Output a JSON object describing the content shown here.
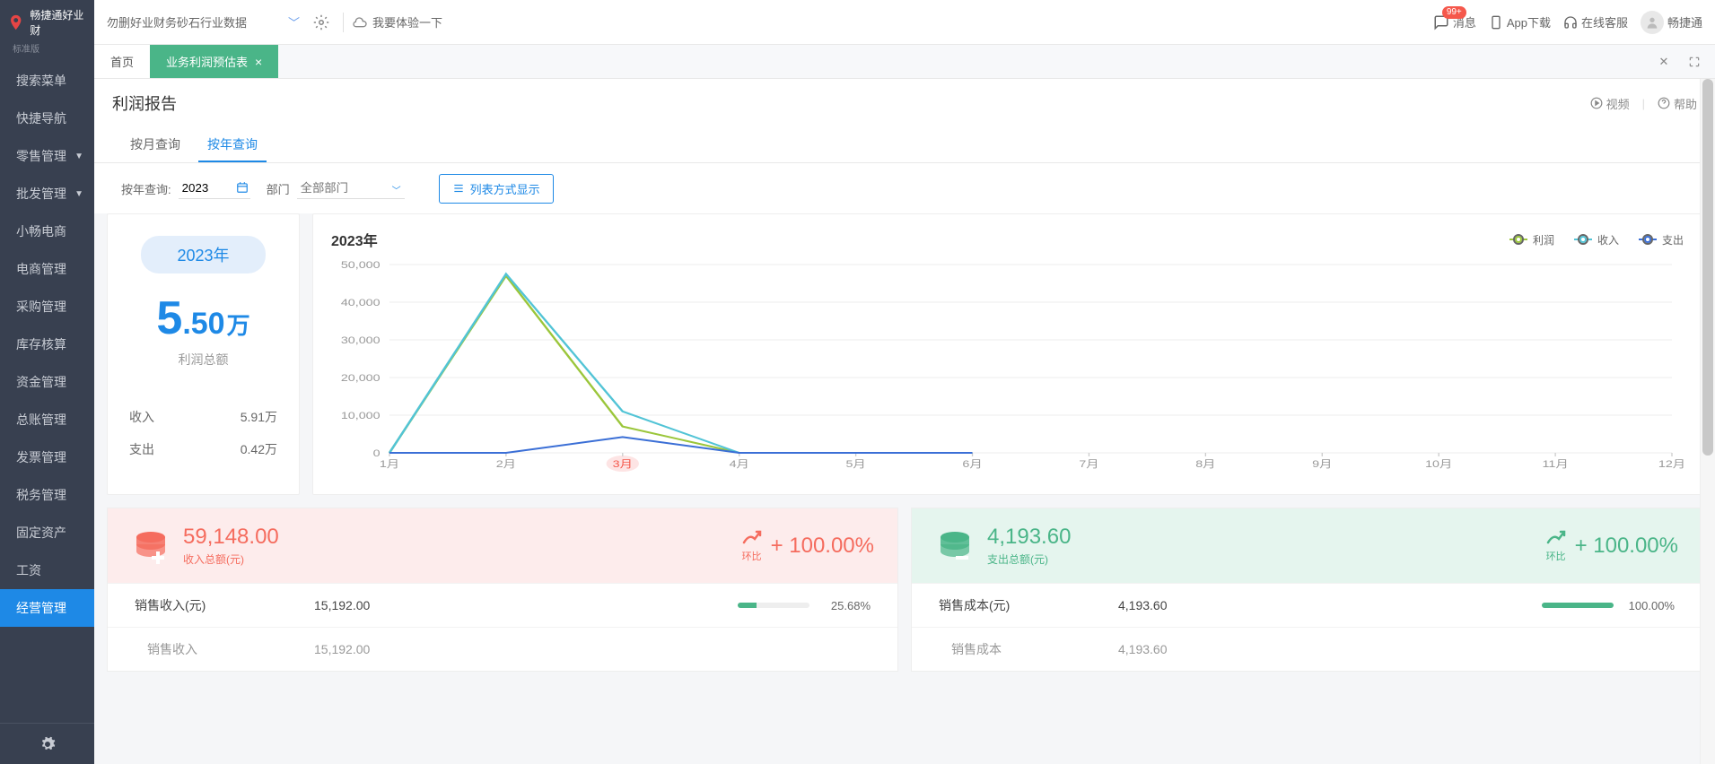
{
  "brand": {
    "name": "畅捷通好业财",
    "edition": "标准版"
  },
  "topbar": {
    "dataset": "勿删好业财务砂石行业数据",
    "try": "我要体验一下",
    "msg": "消息",
    "msg_badge": "99+",
    "app": "App下载",
    "service": "在线客服",
    "user": "畅捷通"
  },
  "tabs": {
    "home": "首页",
    "active": "业务利润预估表"
  },
  "page": {
    "title": "利润报告",
    "video": "视频",
    "help": "帮助"
  },
  "subtabs": {
    "month": "按月查询",
    "year": "按年查询"
  },
  "filter": {
    "year_label": "按年查询:",
    "year_value": "2023",
    "dept_label": "部门",
    "dept_placeholder": "全部部门",
    "list_btn": "列表方式显示"
  },
  "sidebar": {
    "items": [
      {
        "label": "搜索菜单",
        "arrow": false
      },
      {
        "label": "快捷导航",
        "arrow": false
      },
      {
        "label": "零售管理",
        "arrow": true
      },
      {
        "label": "批发管理",
        "arrow": true
      },
      {
        "label": "小畅电商",
        "arrow": false
      },
      {
        "label": "电商管理",
        "arrow": false
      },
      {
        "label": "采购管理",
        "arrow": false
      },
      {
        "label": "库存核算",
        "arrow": false
      },
      {
        "label": "资金管理",
        "arrow": false
      },
      {
        "label": "总账管理",
        "arrow": false
      },
      {
        "label": "发票管理",
        "arrow": false
      },
      {
        "label": "税务管理",
        "arrow": false
      },
      {
        "label": "固定资产",
        "arrow": false
      },
      {
        "label": "工资",
        "arrow": false
      },
      {
        "label": "经营管理",
        "arrow": false,
        "active": true
      }
    ]
  },
  "summary": {
    "year_pill": "2023年",
    "big_int": "5",
    "big_dec": ".50",
    "big_unit": "万",
    "big_label": "利润总额",
    "income_label": "收入",
    "income_val": "5.91万",
    "expense_label": "支出",
    "expense_val": "0.42万"
  },
  "chart": {
    "title": "2023年",
    "legend": [
      {
        "label": "利润",
        "color": "#9bc63b"
      },
      {
        "label": "收入",
        "color": "#52c4d6"
      },
      {
        "label": "支出",
        "color": "#3b6fd6"
      }
    ],
    "y_ticks": [
      0,
      10000,
      20000,
      30000,
      40000,
      50000
    ],
    "y_labels": [
      "0",
      "10,000",
      "20,000",
      "30,000",
      "40,000",
      "50,000"
    ],
    "x_labels": [
      "1月",
      "2月",
      "3月",
      "4月",
      "5月",
      "6月",
      "7月",
      "8月",
      "9月",
      "10月",
      "11月",
      "12月"
    ],
    "highlight_x": 2,
    "ylim": [
      0,
      50000
    ],
    "series": {
      "profit": {
        "color": "#9bc63b",
        "data": [
          0,
          47000,
          7000,
          0,
          0,
          0,
          null,
          null,
          null,
          null,
          null,
          null
        ]
      },
      "income": {
        "color": "#52c4d6",
        "data": [
          0,
          47500,
          11000,
          0,
          0,
          0,
          null,
          null,
          null,
          null,
          null,
          null
        ]
      },
      "expense": {
        "color": "#3b6fd6",
        "data": [
          0,
          0,
          4200,
          0,
          0,
          0,
          null,
          null,
          null,
          null,
          null,
          null
        ]
      }
    }
  },
  "income_card": {
    "value": "59,148.00",
    "label": "收入总额(元)",
    "trend": "+ 100.00%",
    "trend_label": "环比",
    "color": "#f56c5e",
    "rows": [
      {
        "label": "销售收入(元)",
        "val": "15,192.00",
        "pct": "25.68%",
        "pct_num": 25.68,
        "bar_color": "#4ab588"
      },
      {
        "label": "销售收入",
        "val": "15,192.00",
        "sub": true
      }
    ]
  },
  "expense_card": {
    "value": "4,193.60",
    "label": "支出总额(元)",
    "trend": "+ 100.00%",
    "trend_label": "环比",
    "color": "#4ab588",
    "rows": [
      {
        "label": "销售成本(元)",
        "val": "4,193.60",
        "pct": "100.00%",
        "pct_num": 100,
        "bar_color": "#4ab588"
      },
      {
        "label": "销售成本",
        "val": "4,193.60",
        "sub": true
      }
    ]
  }
}
